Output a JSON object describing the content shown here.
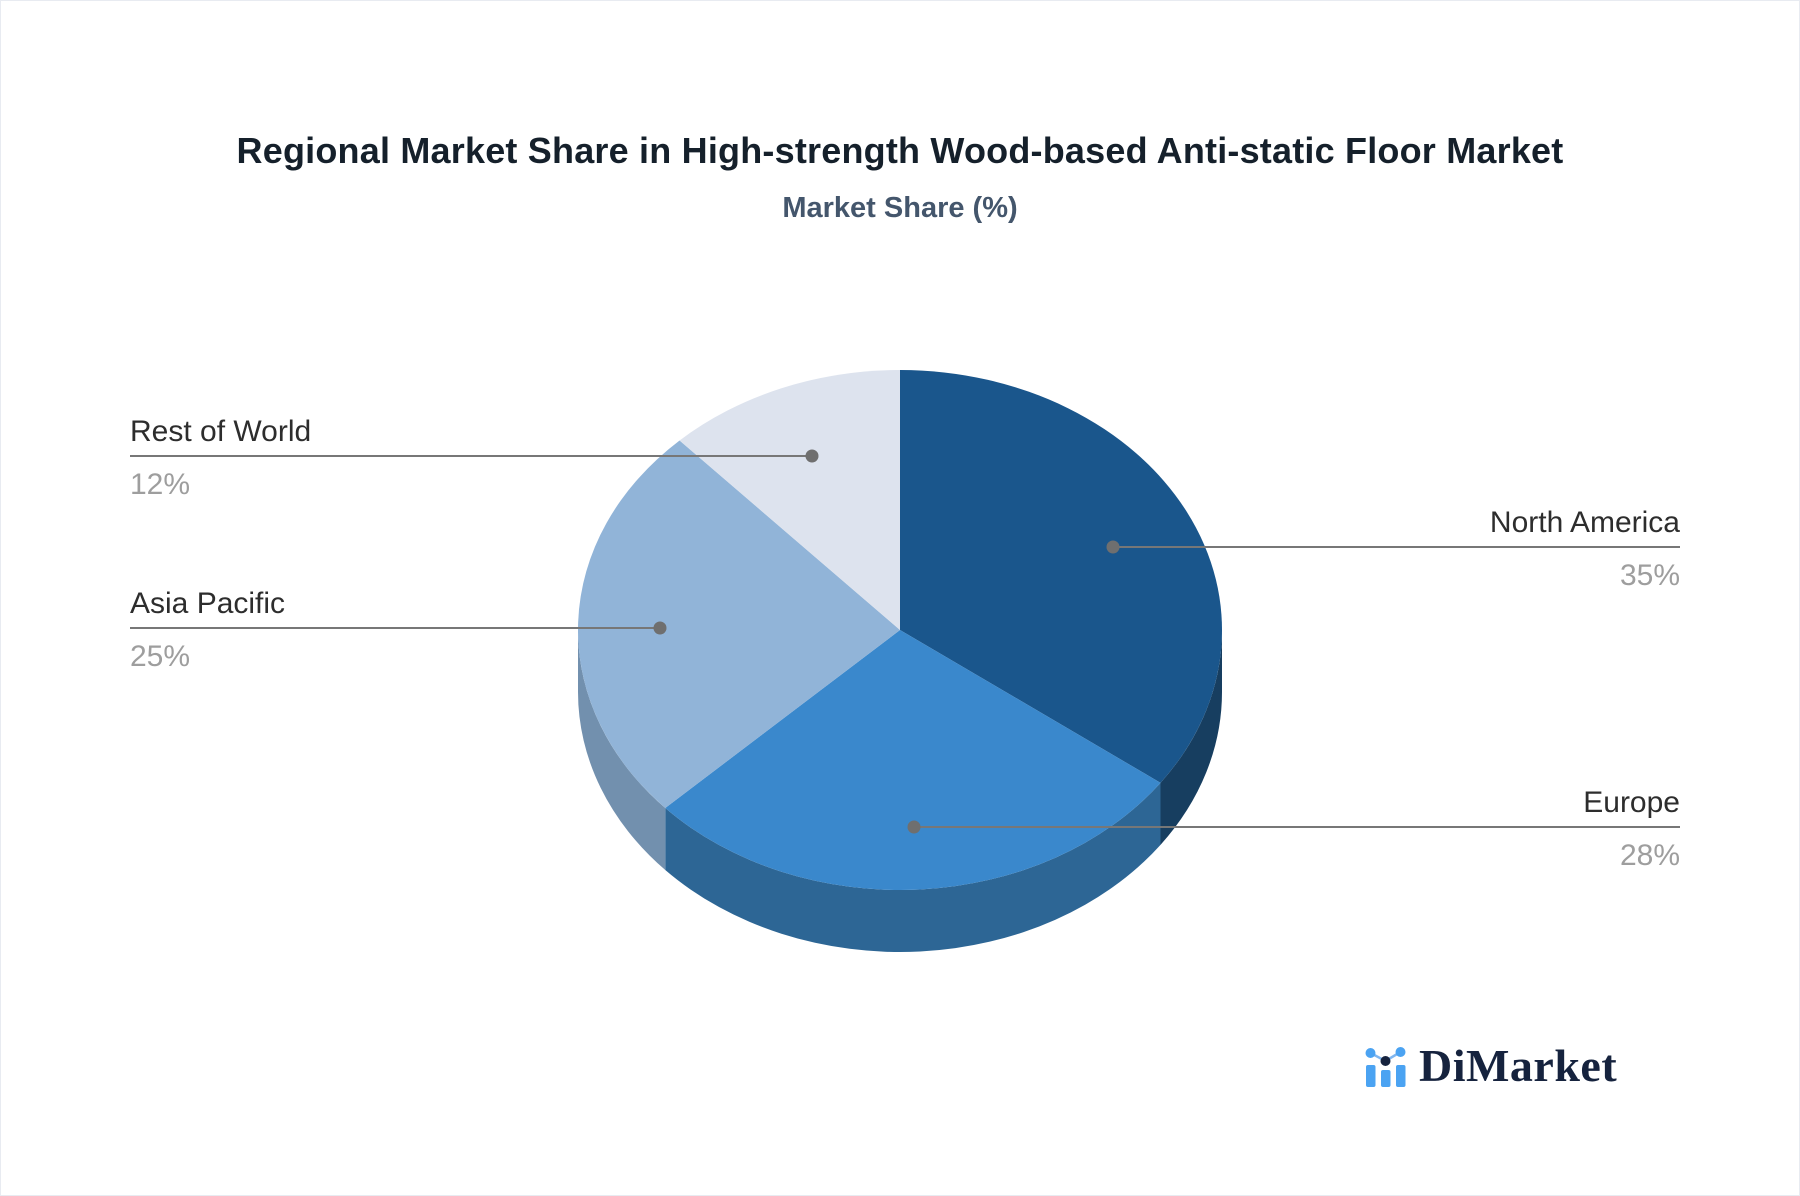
{
  "title": "Regional Market Share in High-strength Wood-based Anti-static Floor Market",
  "subtitle": "Market Share (%)",
  "chart_data": {
    "type": "pie",
    "style": "3d",
    "title": "Regional Market Share in High-strength Wood-based Anti-static Floor Market",
    "subtitle": "Market Share (%)",
    "unit": "percent",
    "direction": "clockwise",
    "start_angle_deg": 0,
    "order_from_top": [
      "North America",
      "Europe",
      "Asia Pacific",
      "Rest of World"
    ],
    "segments": [
      {
        "label": "North America",
        "value": 35,
        "display_value": "35%",
        "top_color": "#1a568c",
        "side_color": "#173e60",
        "callout_side": "right"
      },
      {
        "label": "Europe",
        "value": 28,
        "display_value": "28%",
        "top_color": "#3a88cc",
        "side_color": "#2d6695",
        "callout_side": "right"
      },
      {
        "label": "Asia Pacific",
        "value": 25,
        "display_value": "25%",
        "top_color": "#91b4d8",
        "side_color": "#7290ae",
        "callout_side": "left"
      },
      {
        "label": "Rest of World",
        "value": 12,
        "display_value": "12%",
        "top_color": "#dde3ee",
        "side_color": "#c2cbdb",
        "callout_side": "left"
      }
    ]
  },
  "callout_style": {
    "line_color": "#777777",
    "dot_color": "#6f6f6f",
    "label_color": "#2d2d2d",
    "value_color": "#9e9e9e"
  },
  "theme": {
    "background": "#ffffff",
    "title_color": "#15202b",
    "subtitle_color": "#44566c"
  },
  "logo": {
    "text": "DiMarket",
    "icon": "bar-line-chart-icon",
    "text_color": "#16233e",
    "icon_bar_color": "#4ba3f2",
    "icon_dot_colors": [
      "#4ba3f2",
      "#16233e",
      "#4ba3f2"
    ]
  }
}
